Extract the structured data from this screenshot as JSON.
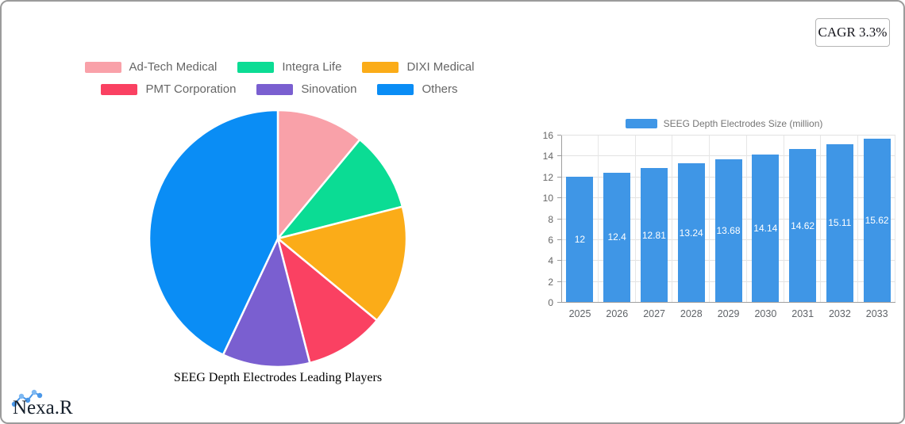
{
  "cagr_badge": {
    "label": "CAGR 3.3%"
  },
  "logo": {
    "text": "Nexa.R",
    "icon": "network-dots-icon",
    "icon_color": "#4a97e8",
    "icon_color_light": "#7db8f2"
  },
  "chart_data": [
    {
      "id": "players-pie",
      "type": "pie",
      "title": "SEEG Depth Electrodes Leading Players",
      "labels": [
        "Ad-Tech Medical",
        "Integra Life",
        "DIXI Medical",
        "PMT Corporation",
        "Sinovation",
        "Others"
      ],
      "values": [
        11,
        10,
        15,
        10,
        11,
        43
      ],
      "colors": [
        "#F9A1A9",
        "#0BDC94",
        "#FBAC18",
        "#FA4162",
        "#7A5FD0",
        "#0A8DF5"
      ],
      "legend_position": "top",
      "start_angle_deg": 0,
      "clockwise": true,
      "slice_gap_color": "#ffffff"
    },
    {
      "id": "size-bar",
      "type": "bar",
      "legend": "SEEG Depth Electrodes Size (million)",
      "categories": [
        "2025",
        "2026",
        "2027",
        "2028",
        "2029",
        "2030",
        "2031",
        "2032",
        "2033"
      ],
      "values": [
        12,
        12.4,
        12.81,
        13.24,
        13.68,
        14.14,
        14.62,
        15.11,
        15.62
      ],
      "value_labels": [
        "12",
        "12.4",
        "12.81",
        "13.24",
        "13.68",
        "14.14",
        "14.62",
        "15.11",
        "15.62"
      ],
      "bar_color": "#3F96E6",
      "value_label_color": "#ffffff",
      "ylim": [
        0,
        16
      ],
      "ytick_step": 2,
      "grid": true,
      "legend_position": "top"
    }
  ]
}
